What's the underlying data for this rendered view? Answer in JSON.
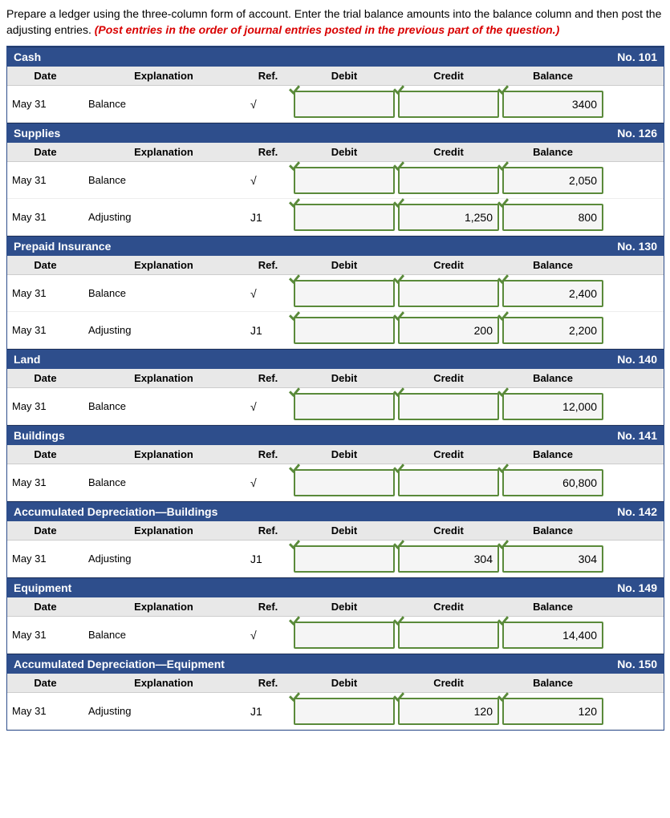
{
  "instructions": {
    "line1": "Prepare a ledger using the three-column form of account. Enter the trial balance amounts into the balance column and then post the adjusting entries. ",
    "red": "(Post entries in the order of journal entries posted in the previous part of the question.)"
  },
  "column_headers": [
    "Date",
    "Explanation",
    "Ref.",
    "Debit",
    "Credit",
    "Balance"
  ],
  "check_symbol": "√",
  "colors": {
    "header_bg": "#2e4e8c",
    "field_border": "#5a8a3a",
    "field_bg": "#f5f5f5",
    "red_text": "#d90000"
  },
  "accounts": [
    {
      "name": "Cash",
      "no": "No. 101",
      "rows": [
        {
          "date": "May 31",
          "expl": "Balance",
          "ref": "√",
          "debit": "",
          "credit": "",
          "balance": "3400"
        }
      ]
    },
    {
      "name": "Supplies",
      "no": "No. 126",
      "rows": [
        {
          "date": "May 31",
          "expl": "Balance",
          "ref": "√",
          "debit": "",
          "credit": "",
          "balance": "2,050"
        },
        {
          "date": "May 31",
          "expl": "Adjusting",
          "ref": "J1",
          "debit": "",
          "credit": "1,250",
          "balance": "800"
        }
      ]
    },
    {
      "name": "Prepaid Insurance",
      "no": "No. 130",
      "rows": [
        {
          "date": "May 31",
          "expl": "Balance",
          "ref": "√",
          "debit": "",
          "credit": "",
          "balance": "2,400"
        },
        {
          "date": "May 31",
          "expl": "Adjusting",
          "ref": "J1",
          "debit": "",
          "credit": "200",
          "balance": "2,200"
        }
      ]
    },
    {
      "name": "Land",
      "no": "No. 140",
      "rows": [
        {
          "date": "May 31",
          "expl": "Balance",
          "ref": "√",
          "debit": "",
          "credit": "",
          "balance": "12,000"
        }
      ]
    },
    {
      "name": "Buildings",
      "no": "No. 141",
      "rows": [
        {
          "date": "May 31",
          "expl": "Balance",
          "ref": "√",
          "debit": "",
          "credit": "",
          "balance": "60,800"
        }
      ]
    },
    {
      "name": "Accumulated Depreciation—Buildings",
      "no": "No. 142",
      "rows": [
        {
          "date": "May 31",
          "expl": "Adjusting",
          "ref": "J1",
          "debit": "",
          "credit": "304",
          "balance": "304"
        }
      ]
    },
    {
      "name": "Equipment",
      "no": "No. 149",
      "rows": [
        {
          "date": "May 31",
          "expl": "Balance",
          "ref": "√",
          "debit": "",
          "credit": "",
          "balance": "14,400"
        }
      ]
    },
    {
      "name": "Accumulated Depreciation—Equipment",
      "no": "No. 150",
      "rows": [
        {
          "date": "May 31",
          "expl": "Adjusting",
          "ref": "J1",
          "debit": "",
          "credit": "120",
          "balance": "120"
        }
      ]
    }
  ]
}
